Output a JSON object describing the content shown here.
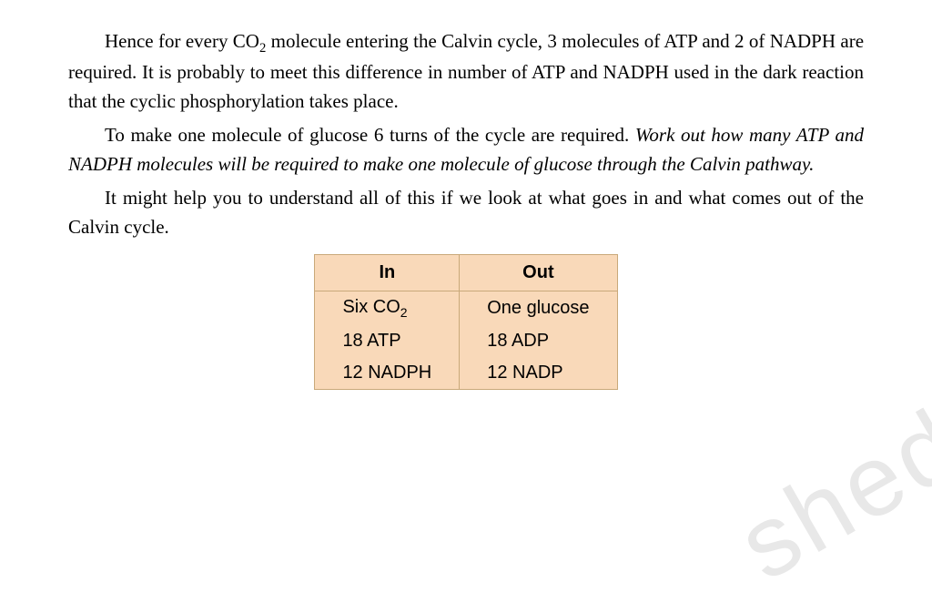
{
  "paragraphs": {
    "p1_part1": "Hence for every CO",
    "p1_sub": "2",
    "p1_part2": " molecule entering the Calvin cycle, 3 molecules of ATP and 2 of NADPH are required. It is probably to meet this difference in number of ATP and NADPH used in the dark reaction that the cyclic phosphorylation takes place.",
    "p2_part1": "To make one molecule of glucose 6 turns of the cycle are required. ",
    "p2_italic": "Work out how many ATP and NADPH molecules will be required to make one molecule of glucose through the Calvin pathway.",
    "p3": "It might help you to understand all of this if we look at what goes in and what comes out of the Calvin cycle."
  },
  "table": {
    "header_in": "In",
    "header_out": "Out",
    "rows": [
      {
        "in_prefix": "Six CO",
        "in_sub": "2",
        "in_suffix": "",
        "out": "One glucose"
      },
      {
        "in_prefix": "18 ATP",
        "in_sub": "",
        "in_suffix": "",
        "out": "18 ADP"
      },
      {
        "in_prefix": "12 NADPH",
        "in_sub": "",
        "in_suffix": "",
        "out": "12 NADP"
      }
    ]
  },
  "watermark": "shed",
  "styling": {
    "body_bg": "#ffffff",
    "text_color": "#000000",
    "paragraph_fontsize": 21,
    "table_bg": "#f9d9b9",
    "table_border": "#c9a97a",
    "table_fontsize": 20,
    "watermark_color": "#e8e8e8",
    "watermark_fontsize": 110
  }
}
